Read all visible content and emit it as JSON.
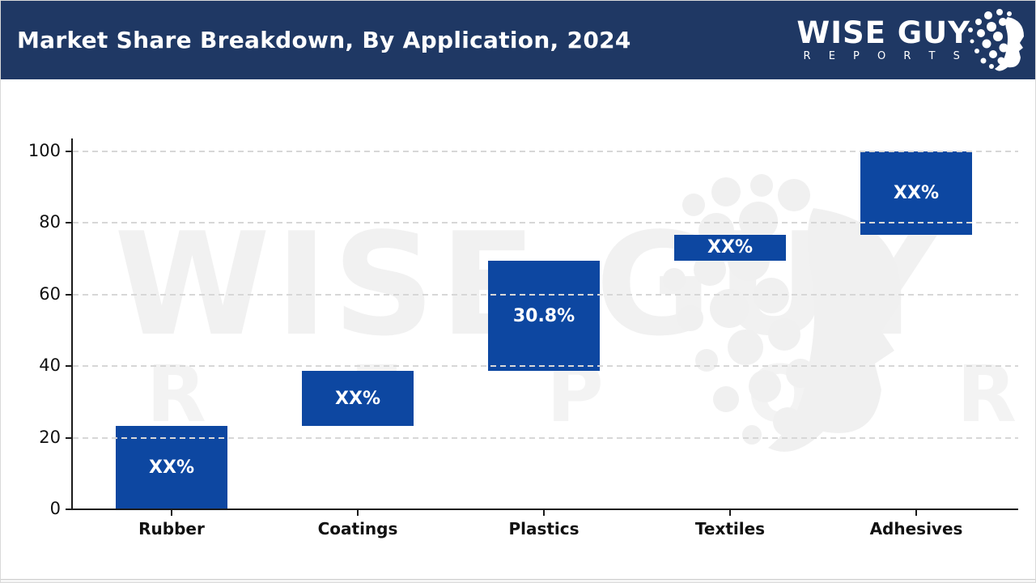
{
  "header": {
    "title": "Market Share Breakdown, By Application, 2024",
    "bg_color": "#1f3864",
    "logo": {
      "line1": "WISE GUY",
      "line2": "R E P O R T S"
    }
  },
  "watermark": {
    "line1": "WISE GUY",
    "line2": "R E P O R T S"
  },
  "chart_data": {
    "type": "bar",
    "subtype": "waterfall",
    "title": "Market Share Breakdown, By Application, 2024",
    "categories": [
      "Rubber",
      "Coatings",
      "Plastics",
      "Textiles",
      "Adhesives"
    ],
    "segments": [
      {
        "category": "Rubber",
        "start": 0,
        "end": 23.2,
        "value": 23.2,
        "label": "XX%"
      },
      {
        "category": "Coatings",
        "start": 23.2,
        "end": 38.6,
        "value": 15.4,
        "label": "XX%"
      },
      {
        "category": "Plastics",
        "start": 38.6,
        "end": 69.4,
        "value": 30.8,
        "label": "30.8%"
      },
      {
        "category": "Textiles",
        "start": 69.4,
        "end": 76.8,
        "value": 7.4,
        "label": "XX%"
      },
      {
        "category": "Adhesives",
        "start": 76.8,
        "end": 100,
        "value": 23.2,
        "label": "XX%"
      }
    ],
    "y_ticks": [
      0,
      20,
      40,
      60,
      80,
      100
    ],
    "ylim": [
      0,
      103.5
    ],
    "xlabel": "",
    "ylabel": "",
    "legend": "none",
    "grid": "horizontal dashed, drawn over bars",
    "bar_color": "#0d47a1",
    "label_color": "#ffffff"
  }
}
